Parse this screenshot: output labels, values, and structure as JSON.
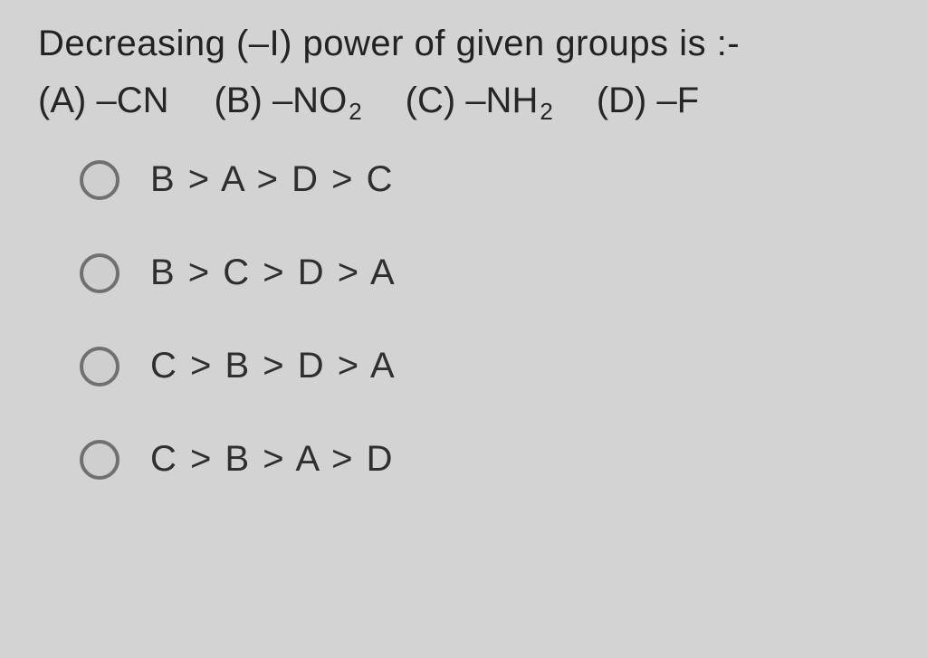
{
  "question": {
    "stem": "Decreasing (–I) power of given groups is :-",
    "groups": [
      {
        "letter": "A",
        "formula_prefix": "–CN",
        "sub": ""
      },
      {
        "letter": "B",
        "formula_prefix": "–NO",
        "sub": "2"
      },
      {
        "letter": "C",
        "formula_prefix": "–NH",
        "sub": "2"
      },
      {
        "letter": "D",
        "formula_prefix": "–F",
        "sub": ""
      }
    ]
  },
  "options": [
    {
      "text": "B > A > D > C"
    },
    {
      "text": "B > C > D > A"
    },
    {
      "text": "C > B > D > A"
    },
    {
      "text": "C > B > A > D"
    }
  ],
  "style": {
    "background_color": "#d4d3d3",
    "text_color": "#2b2b2b",
    "radio_border_color": "#707070",
    "font_size_main_pt": 30,
    "font_size_sub_pt": 20
  }
}
